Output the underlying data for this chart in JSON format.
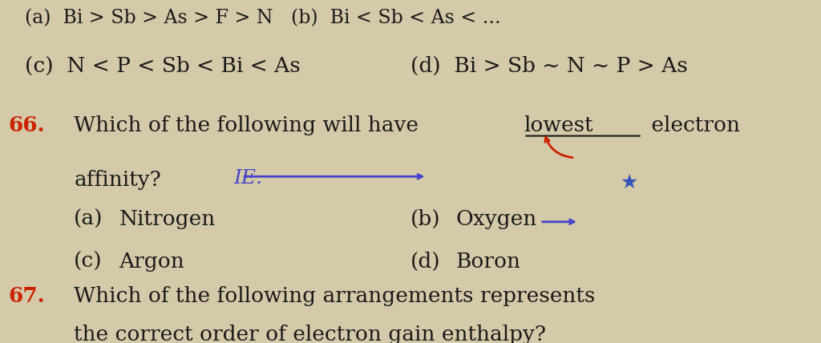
{
  "background_color": "#d4c9a8",
  "top_line": "(a)  Bi > Sb > As > F > N   (b)  Bi < Sb < As < ...",
  "line1_c": "(c)  N < P < Sb < Bi < As",
  "line1_d": "(d)  Bi > Sb ~ N ~ P > As",
  "q66_num": "66.",
  "q66_text1": "Which of the following will have ",
  "q66_underline": "lowest",
  "q66_text2": " electron",
  "q66_text3": "affinity?",
  "opt_a_label": "(a)",
  "opt_a_text": "Nitrogen",
  "opt_b_label": "(b)",
  "opt_b_text": "Oxygen",
  "opt_c_label": "(c)",
  "opt_c_text": "Argon",
  "opt_d_label": "(d)",
  "opt_d_text": "Boron",
  "q67_num": "67.",
  "q67_text1": "Which of the following arrangements represents",
  "q67_text2": "the correct order of electron gain enthalpy?",
  "main_font_size": 19,
  "text_color": "#1a1a1a",
  "red_color": "#cc2200",
  "blue_color": "#2244cc",
  "annot_blue": "#4444cc",
  "annot_red": "#cc2200"
}
